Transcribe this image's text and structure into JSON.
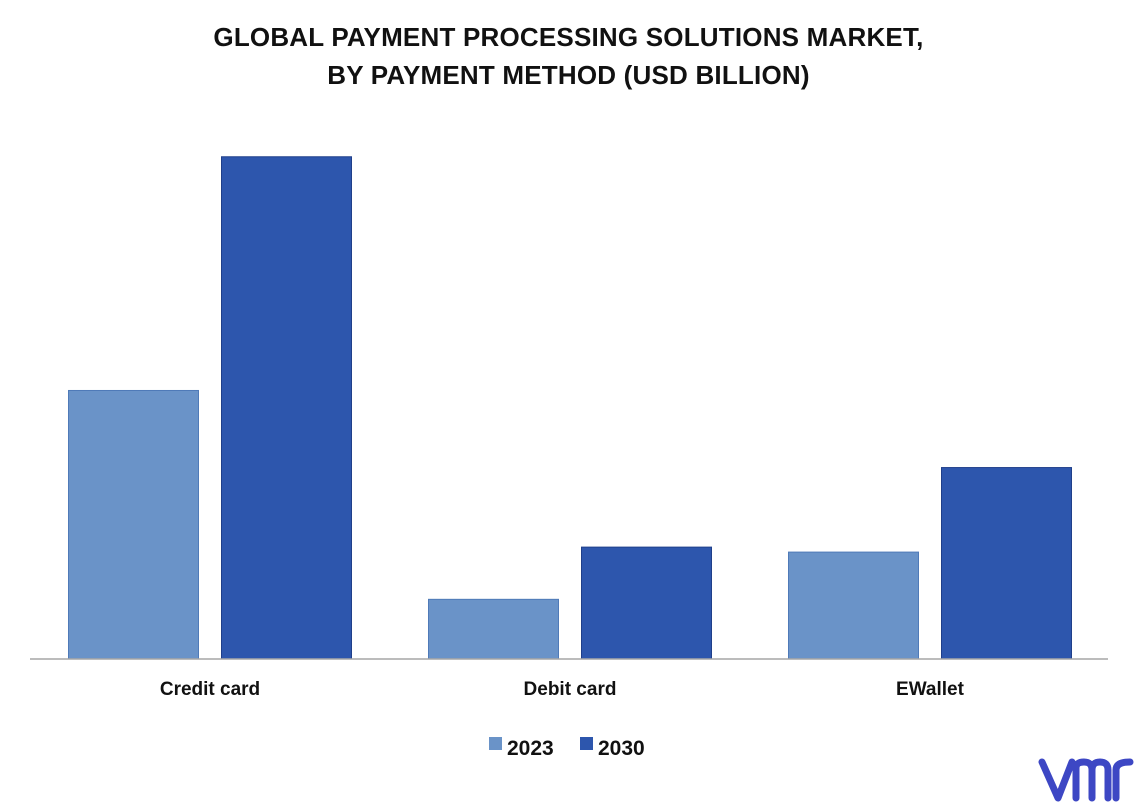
{
  "chart_data": {
    "type": "bar",
    "title_lines": [
      "GLOBAL PAYMENT PROCESSING SOLUTIONS MARKET,",
      "BY PAYMENT METHOD (USD BILLION)"
    ],
    "categories": [
      "Credit card",
      "Debit card",
      "EWallet"
    ],
    "series": [
      {
        "name": "2023",
        "values": [
          54,
          12,
          21.5
        ],
        "color": "#6a93c8"
      },
      {
        "name": "2030",
        "values": [
          101,
          22.5,
          38.5
        ],
        "color": "#2d56ad"
      }
    ],
    "ylim": [
      0,
      110
    ],
    "grid": false,
    "legend_position": "bottom"
  },
  "logo": {
    "text": "vm",
    "color": "#3d47c4",
    "icon": "vmr-logo"
  }
}
